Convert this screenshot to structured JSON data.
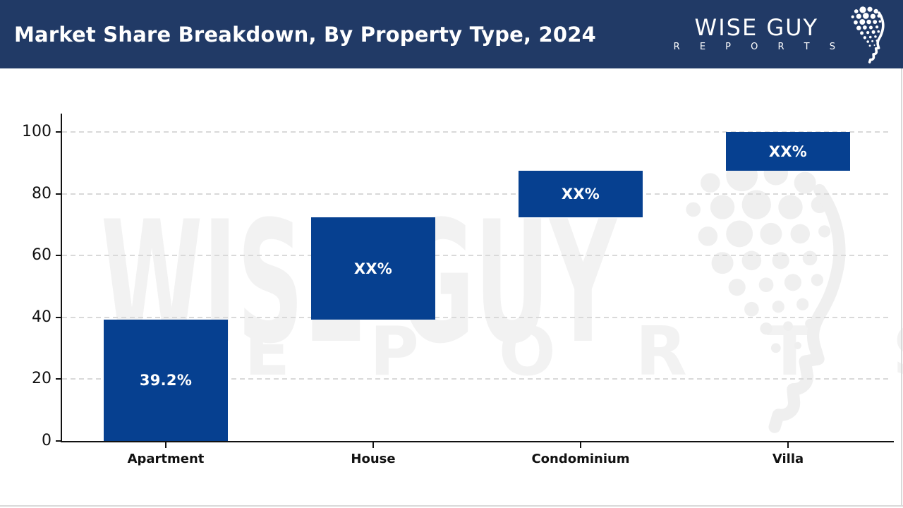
{
  "header": {
    "title": "Market Share Breakdown, By Property Type, 2024",
    "background_color": "#213a66",
    "logo": {
      "line1": "WISE GUY",
      "line2": "R E P O R T S",
      "icon": "dotted-head-profile-icon",
      "color": "#ffffff"
    }
  },
  "watermark": {
    "line1": "WISE GUY",
    "line2": "R E P O R T S",
    "icon": "dotted-head-profile-icon",
    "color": "#f2f2f2"
  },
  "chart_data": {
    "type": "bar",
    "subtype": "waterfall",
    "title": "Market Share Breakdown, By Property Type, 2024",
    "categories": [
      "Apartment",
      "House",
      "Condominium",
      "Villa"
    ],
    "segments": [
      {
        "category": "Apartment",
        "start": 0,
        "end": 39.2,
        "label": "39.2%"
      },
      {
        "category": "House",
        "start": 39.2,
        "end": 72.4,
        "label": "XX%"
      },
      {
        "category": "Condominium",
        "start": 72.4,
        "end": 87.4,
        "label": "XX%"
      },
      {
        "category": "Villa",
        "start": 87.4,
        "end": 100,
        "label": "XX%"
      }
    ],
    "values_estimated": [
      39.2,
      33.2,
      15.0,
      12.6
    ],
    "xlabel": "",
    "ylabel": "",
    "yticks": [
      0,
      20,
      40,
      60,
      80,
      100
    ],
    "ylim": [
      0,
      106
    ],
    "grid": "dashed-horizontal",
    "legend": "none",
    "bar_color": "#064090",
    "bar_label_color": "#ffffff",
    "grid_color": "#d9d9d9",
    "axis_color": "#111111"
  }
}
